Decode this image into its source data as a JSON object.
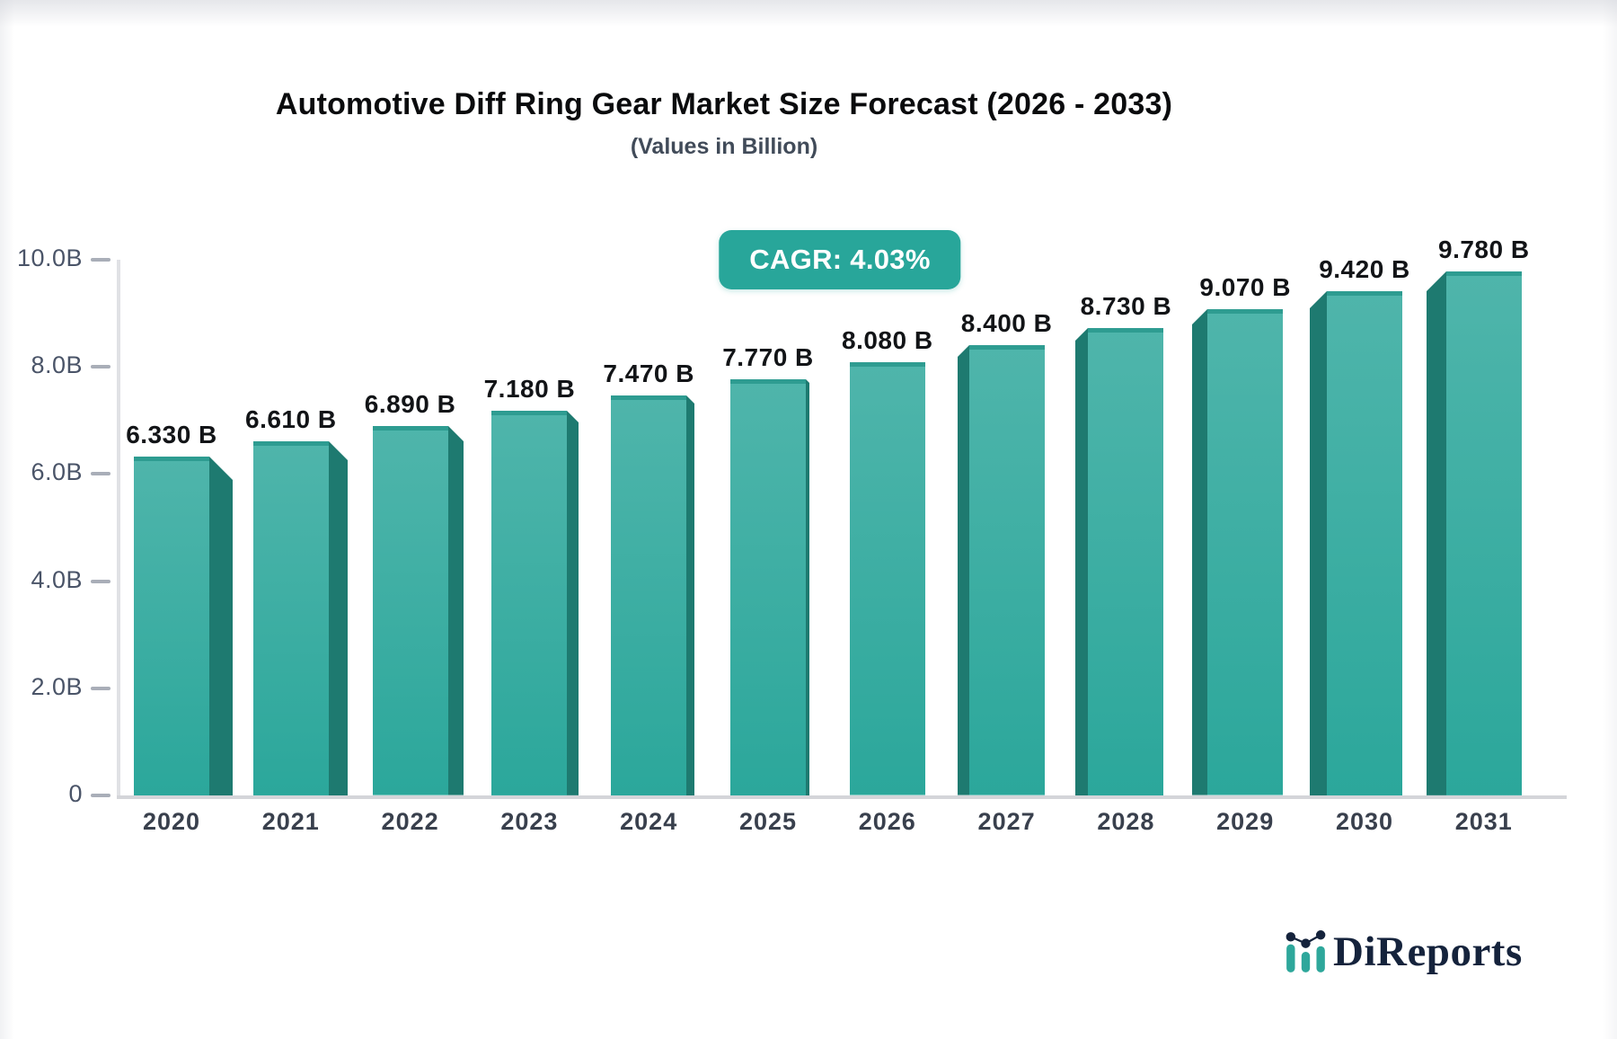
{
  "chart_data": {
    "type": "bar",
    "title": "Automotive Diff Ring Gear Market Size Forecast (2026 - 2033)",
    "subtitle": "(Values in Billion)",
    "badge_label": "CAGR: 4.03%",
    "categories": [
      "2020",
      "2021",
      "2022",
      "2023",
      "2024",
      "2025",
      "2026",
      "2027",
      "2028",
      "2029",
      "2030",
      "2031"
    ],
    "values": [
      6.33,
      6.61,
      6.89,
      7.18,
      7.47,
      7.77,
      8.08,
      8.4,
      8.73,
      9.07,
      9.42,
      9.78
    ],
    "value_labels": [
      "6.330 B",
      "6.610 B",
      "6.890 B",
      "7.180 B",
      "7.470 B",
      "7.770 B",
      "8.080 B",
      "8.400 B",
      "8.730 B",
      "9.070 B",
      "9.420 B",
      "9.780 B"
    ],
    "xlabel": "",
    "ylabel": "",
    "ylim": [
      0,
      10
    ],
    "ytick_labels": [
      "0",
      "2.0B",
      "4.0B",
      "6.0B",
      "8.0B",
      "10.0B"
    ],
    "grid": false,
    "legend": "none",
    "bar_style": "3d-beveled",
    "depths3d": [
      26,
      21,
      17,
      13,
      9,
      4,
      0,
      13,
      14,
      17,
      19,
      22
    ],
    "colors": {
      "bar_face_top": "#4fb5ab",
      "bar_face_bottom": "#2ba79b",
      "bar_side": "#1e7a70",
      "bar_top_edge": "#2e9c91",
      "badge_bg": "#28a69a",
      "badge_text": "#ffffff",
      "axis_line": "#d9dadf",
      "value_label": "#121417",
      "year_label": "#39404d",
      "ytick_label": "#4a5468"
    }
  },
  "branding": {
    "logo_text": "DiReports",
    "logo_color": "#15233c",
    "icon": "mini-bar-chart-icon",
    "icon_bar_color": "#2ea79b"
  }
}
